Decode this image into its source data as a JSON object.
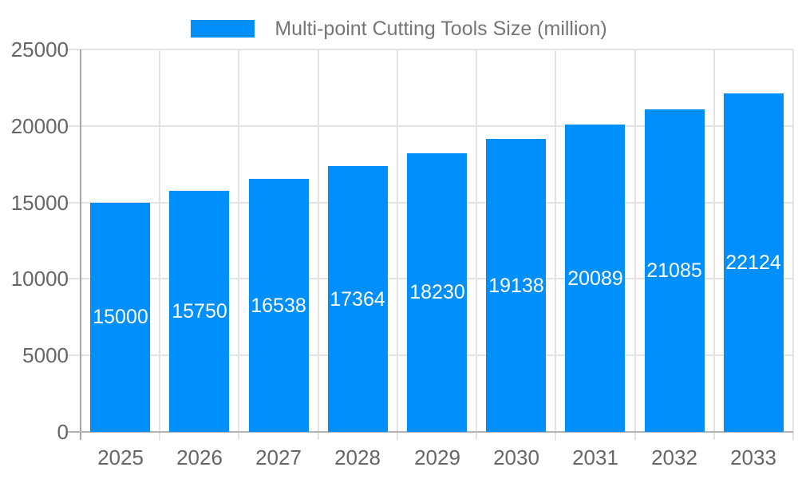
{
  "legend": {
    "label": "Multi-point Cutting Tools Size (million)",
    "swatch_color": "#008ffb"
  },
  "chart_data": {
    "type": "bar",
    "title": "Multi-point Cutting Tools Size (million)",
    "categories": [
      "2025",
      "2026",
      "2027",
      "2028",
      "2029",
      "2030",
      "2031",
      "2032",
      "2033"
    ],
    "series": [
      {
        "name": "Multi-point Cutting Tools Size (million)",
        "values": [
          15000,
          15750,
          16538,
          17364,
          18230,
          19138,
          20089,
          21085,
          22124
        ]
      }
    ],
    "xlabel": "",
    "ylabel": "",
    "ylim": [
      0,
      25000
    ],
    "y_ticks": [
      0,
      5000,
      10000,
      15000,
      20000,
      25000
    ],
    "grid": true,
    "legend_position": "top",
    "bar_labels_shown": true,
    "colors": {
      "bar": "#008ffb",
      "bar_label": "#ffffff",
      "axis_text": "#666666",
      "title_text": "#757575",
      "gridline": "#e3e3e3",
      "axis_line_x": "#b3b3b3",
      "axis_line_y": "#a6a6a6"
    }
  }
}
